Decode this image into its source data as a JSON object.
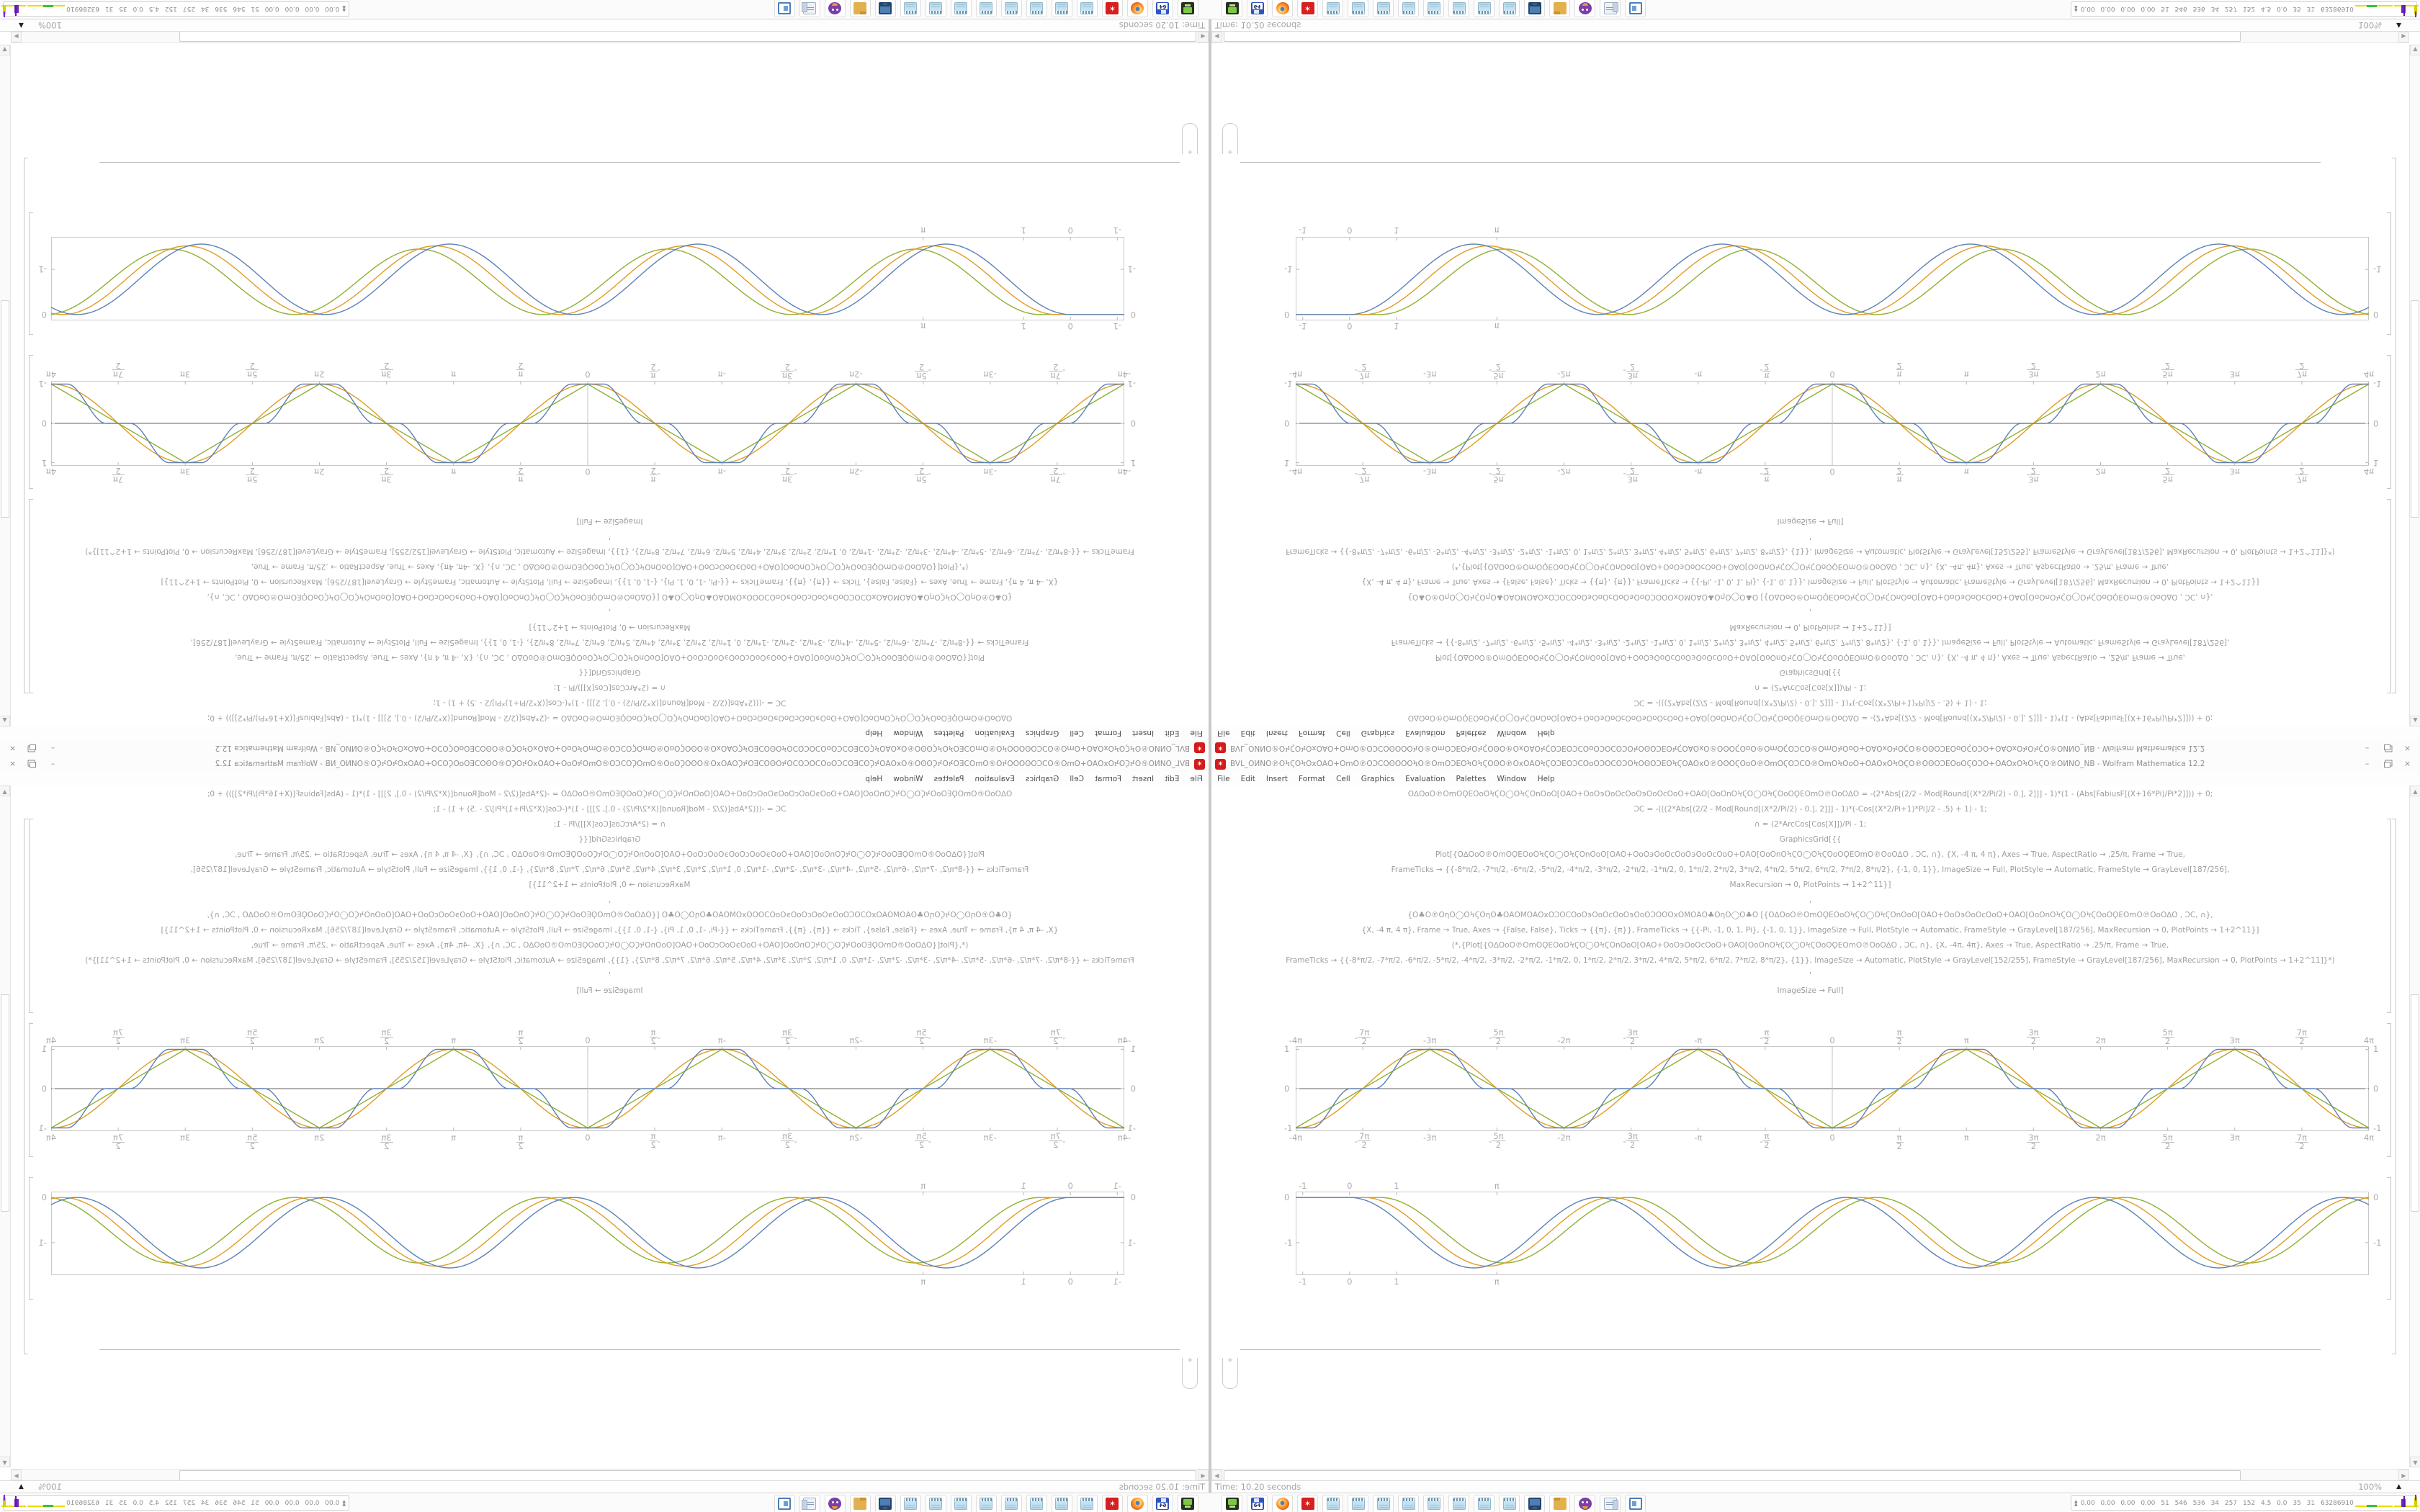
{
  "window": {
    "title": "BVL_ΟИΝΟ℗ΟϞϚΟϞΟxΟΑΟ+ΟmΟ℗ΟϽϹΟʘΟΟΟϞΟ℗ΟmΟϽΕΟϞΟϞϚΟʘΟ℗ΟxΟΑΟϞϚΟϽΕΟϽϹΟοΟϽΟϹΟϽΟϞΟʘΟϽΕΟϞϚΟΑΟxΟ℗ΟʘΟϚΟοΟ℗ΟmΟϚΟϽϹΟ℗ΟmΟϞΟοΟ+ΟΑΟxΟϞΟϚΟ℗ΟʘΟϽΕΟοΟϚΟϽΟ+ΟΑΟxΟϞΟϞϚΟ℗ΟИΝΟ_ΝΒ - Wolfram Mathematica 12.2",
    "app_icon_glyph": "✶",
    "buttons": {
      "minimize": "–",
      "close": "×"
    },
    "menu_items": [
      "File",
      "Edit",
      "Insert",
      "Format",
      "Cell",
      "Graphics",
      "Evaluation",
      "Palettes",
      "Window",
      "Help"
    ],
    "code_lines": [
      "Ο∆ΟοΟ℗ΟmΟϘΕΟοΟϞϚΟ◯ΟϞϚΟnΟοΟ[ΟΑΟ+ΟοΟ϶ΟοΟϲΟοΟ϶ΟοΟϲΟοΟ+ΟΑΟ[ΟοΟnΟϞϚΟ◯ΟϞϚΟοΟϘΕΟmΟ℗ΟοΟ∆Ο  = -(2*Abs[(2/2 - Mod[Round[(X*2/Pi/2) - 0.], 2]]] - 1)*(1 - (Abs[FabiusF[(X+16*Pi)/Pi*2]])) + 0;",
      "ϽϹ = -(((2*Abs[(2/2 - Mod[Round[(X*2/Pi/2) - 0.], 2]]] - 1)*(-Cos[(X*2/Pi+1)*Pi]/2 - .5) + 1) - 1;",
      "∩ = (2*ArcCos[Cos[X]])/Pi - 1;",
      "GraphicsGrid[{{",
      "Plot[{Ο∆ΟοΟ℗ΟmΟϘΕΟοΟϞϚΟ◯ΟϞϚΟnΟοΟ[ΟΑΟ+ΟοΟ϶ΟοΟϲΟοΟ϶ΟοΟϲΟοΟ+ΟΑΟ[ΟοΟnΟϞϚΟ◯ΟϞϚΟοΟϘΕΟmΟ℗ΟοΟ∆Ο , ϽϹ, ∩}, {X, -4 π, 4 π}, Axes → True, AspectRatio → .25/π, Frame → True,",
      "FrameTicks → {{-8*π/2, -7*π/2, -6*π/2, -5*π/2, -4*π/2, -3*π/2, -2*π/2, -1*π/2, 0, 1*π/2, 2*π/2, 3*π/2, 4*π/2, 5*π/2, 6*π/2, 7*π/2, 8*π/2}, {-1, 0, 1}}, ImageSize → Full, PlotStyle → Automatic, FrameStyle → GrayLevel[187/256],",
      "MaxRecursion → 0, PlotPoints → 1+2^11}]",
      ",",
      "{Ο♣Ο℗ΟηΟ◯ΟϞϚΟηΟ♣ΟΑΟΜΟΑΟxΟϽΟϹΟοΟ϶ΟοΟϲΟοΟ϶ΟοΟϽΟΟΟxΟΜΟΑΟ♣ΟηΟ◯Ο♣Ο  [{Ο∆ΟοΟ℗ΟmΟϘΕΟοΟϞϚΟ◯ΟϞϚΟnΟοΟ[ΟΑΟ+ΟοΟ϶ΟοΟϲΟοΟ+ΟΑΟ[ΟοΟnΟϞϚΟ◯ΟϞϚΟοΟϘΕΟmΟ℗ΟοΟ∆Ο , ϽϹ, ∩},",
      "{X, -4 π, 4 π}, Frame → True, Axes → {False, False}, Ticks → {{π}, {π}}, FrameTicks → {{-Pi, -1, 0, 1, Pi}, {-1, 0, 1}}, ImageSize → Full, PlotStyle → Automatic, FrameStyle → GrayLevel[187/256], MaxRecursion → 0, PlotPoints → 1+2^11}]",
      "(*,{Plot[{Ο∆ΟοΟ℗ΟmΟϘΕΟοΟϞϚΟ◯ΟϞϚΟnΟοΟ[ΟΑΟ+ΟοΟ϶ΟοΟϲΟοΟ+ΟΑΟ[ΟοΟnΟϞϚΟ◯ΟϞϚΟοΟϘΕΟmΟ℗ΟοΟ∆Ο , ϽϹ, ∩}, {X, -4π, 4π}, Axes → True, AspectRatio → .25/π, Frame → True,",
      "FrameTicks → {{-8*π/2, -7*π/2, -6*π/2, -5*π/2, -4*π/2, -3*π/2, -2*π/2, -1*π/2, 0, 1*π/2, 2*π/2, 3*π/2, 4*π/2, 5*π/2, 6*π/2, 7*π/2, 8*π/2}, {1}}, ImageSize → Automatic, PlotStyle → GrayLevel[152/255], FrameStyle → GrayLevel[187/256], MaxRecursion → 0, PlotPoints → 1+2^11]}*)",
      "'",
      "ImageSize → Full]"
    ],
    "cell_insert_plus": "+",
    "status_time": "Time: 10.20 seconds",
    "status_zoom": "100%",
    "status_zoom_triangle": "▲",
    "scroll_arrows": {
      "up": "▲",
      "down": "▼",
      "left": "◀",
      "right": "▶"
    }
  },
  "taskbar": {
    "icons": [
      {
        "name": "emulator-app-icon",
        "type": "emulator"
      },
      {
        "name": "floppy-64-icon",
        "type": "floppy64",
        "label": "64"
      },
      {
        "name": "firefox-icon",
        "type": "firefox"
      },
      {
        "name": "mathematica-icon",
        "type": "mathematica",
        "label": "✶"
      },
      {
        "name": "notepad-icon",
        "type": "notepad"
      },
      {
        "name": "notepad-icon",
        "type": "notepad"
      },
      {
        "name": "notepad-icon",
        "type": "notepad"
      },
      {
        "name": "notepad-icon",
        "type": "notepad"
      },
      {
        "name": "notepad-icon",
        "type": "notepad"
      },
      {
        "name": "notepad-icon",
        "type": "notepad"
      },
      {
        "name": "notepad-icon",
        "type": "notepad"
      },
      {
        "name": "notepad-icon",
        "type": "notepad"
      },
      {
        "name": "system-monitor-icon",
        "type": "monitor"
      },
      {
        "name": "folder-icon",
        "type": "folder"
      },
      {
        "name": "purple-app-icon",
        "type": "purple"
      },
      {
        "name": "document-stack-icon",
        "type": "docs"
      },
      {
        "name": "blue-frame-app-icon",
        "type": "frame"
      }
    ]
  },
  "system_monitor": {
    "values": "0.00 0.00 0.00 0.00 51 546 536 34 257 152 4.5 0.0 35 31 63286910"
  },
  "chart_data": [
    {
      "type": "line",
      "id": "plot1",
      "title": "",
      "xlabel": "",
      "ylabel": "",
      "x_range": [
        -12.566,
        12.566
      ],
      "y_range": [
        -1.08,
        1.08
      ],
      "frame": true,
      "axes": true,
      "grid": false,
      "legend": "none",
      "x_tick_labels": [
        "-4π",
        "-7π/2",
        "-3π",
        "-5π/2",
        "-2π",
        "-3π/2",
        "-π",
        "-π/2",
        "0",
        "π/2",
        "π",
        "3π/2",
        "2π",
        "5π/2",
        "3π",
        "7π/2",
        "4π"
      ],
      "x_tick_values": [
        -12.566,
        -10.996,
        -9.425,
        -7.854,
        -6.283,
        -4.712,
        -3.1416,
        -1.5708,
        0,
        1.5708,
        3.1416,
        4.712,
        6.283,
        7.854,
        9.425,
        10.996,
        12.566
      ],
      "y_tick_labels": [
        "1",
        "0",
        "-1"
      ],
      "y_tick_values": [
        1,
        0,
        -1
      ],
      "series": [
        {
          "name": "fabius_step_wave",
          "color": "#5E81B5",
          "fn": "fabius",
          "period": 6.2832,
          "amplitude": 1
        },
        {
          "name": "negative_cosine_wave",
          "color": "#E19C24",
          "fn": "negcos",
          "period": 6.2832,
          "amplitude": 1
        },
        {
          "name": "triangle_wave",
          "color": "#8FB032",
          "fn": "triangle",
          "period": 6.2832,
          "amplitude": 1
        }
      ]
    },
    {
      "type": "line",
      "id": "plot2",
      "title": "",
      "xlabel": "",
      "ylabel": "",
      "x_range": [
        -1.15,
        21.75
      ],
      "y_range": [
        -1.72,
        0.13
      ],
      "frame": true,
      "axes": false,
      "grid": false,
      "legend": "none",
      "x_tick_labels": [
        "-1",
        "0",
        "1",
        "π"
      ],
      "x_tick_values": [
        -1,
        0,
        1,
        3.1416
      ],
      "y_tick_labels": [
        "0",
        "-1"
      ],
      "y_tick_values": [
        0,
        -1
      ],
      "series": [
        {
          "name": "dip_wave_blue",
          "color": "#5E81B5",
          "fn": "dipwave",
          "period": 5.3,
          "depth": 1.56,
          "phase": 0
        },
        {
          "name": "dip_wave_orange",
          "color": "#E19C24",
          "fn": "dipwave",
          "period": 5.3,
          "depth": 1.52,
          "phase": 0.3
        },
        {
          "name": "dip_wave_green",
          "color": "#8FB032",
          "fn": "dipwave",
          "period": 5.3,
          "depth": 1.45,
          "phase": 0.65
        }
      ]
    }
  ]
}
